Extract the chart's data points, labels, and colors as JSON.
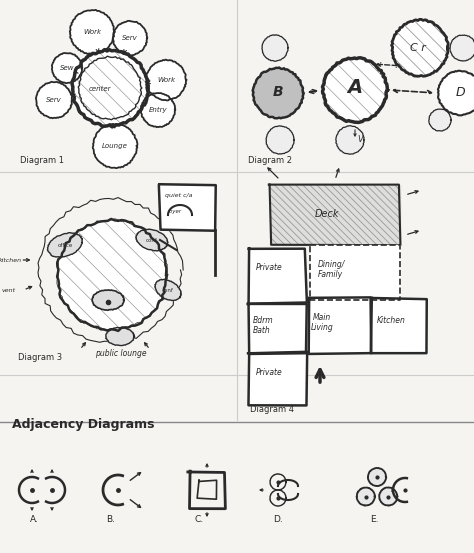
{
  "bg_color": "#f5f4f1",
  "sketch_color": "#2a2a2a",
  "title": "Adjacency Diagrams",
  "diagram1_label": "Diagram 1",
  "diagram2_label": "Diagram 2",
  "diagram3_label": "Diagram 3",
  "diagram4_label": "Diagram 4",
  "adj_labels": [
    "A.",
    "B.",
    "C.",
    "D.",
    "E."
  ]
}
